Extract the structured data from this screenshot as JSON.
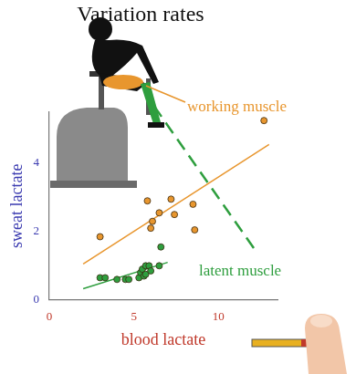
{
  "chart_data": {
    "type": "scatter",
    "title": "Variation rates",
    "x_label": "blood lactate",
    "y_label": "sweat lactate",
    "xlim": [
      0,
      13.5
    ],
    "xticks": [
      0,
      5,
      10
    ],
    "ylim": [
      0,
      5.5
    ],
    "yticks": [
      0,
      2,
      4
    ],
    "grid": false,
    "series": [
      {
        "name": "working muscle",
        "color": "#e8962e",
        "marker": "circle",
        "x": [
          3.0,
          5.8,
          6.0,
          6.1,
          6.5,
          7.2,
          7.4,
          8.5,
          8.6,
          12.7
        ],
        "values": [
          1.85,
          2.9,
          2.1,
          2.3,
          2.55,
          2.95,
          2.5,
          2.8,
          2.05,
          5.25
        ],
        "fit": {
          "x": [
            2,
            13
          ],
          "values": [
            1.05,
            4.55
          ]
        }
      },
      {
        "name": "latent muscle",
        "color": "#2e9e3e",
        "marker": "circle",
        "x": [
          3.0,
          3.3,
          4.0,
          4.5,
          4.7,
          5.3,
          5.4,
          5.5,
          5.6,
          5.7,
          5.7,
          5.9,
          6.0,
          6.5,
          6.6
        ],
        "values": [
          0.65,
          0.65,
          0.6,
          0.6,
          0.6,
          0.65,
          0.8,
          0.9,
          0.7,
          0.75,
          1.0,
          1.0,
          0.85,
          1.0,
          1.55
        ],
        "fit": {
          "x": [
            2,
            7
          ],
          "values": [
            0.33,
            1.1
          ]
        }
      }
    ]
  }
}
